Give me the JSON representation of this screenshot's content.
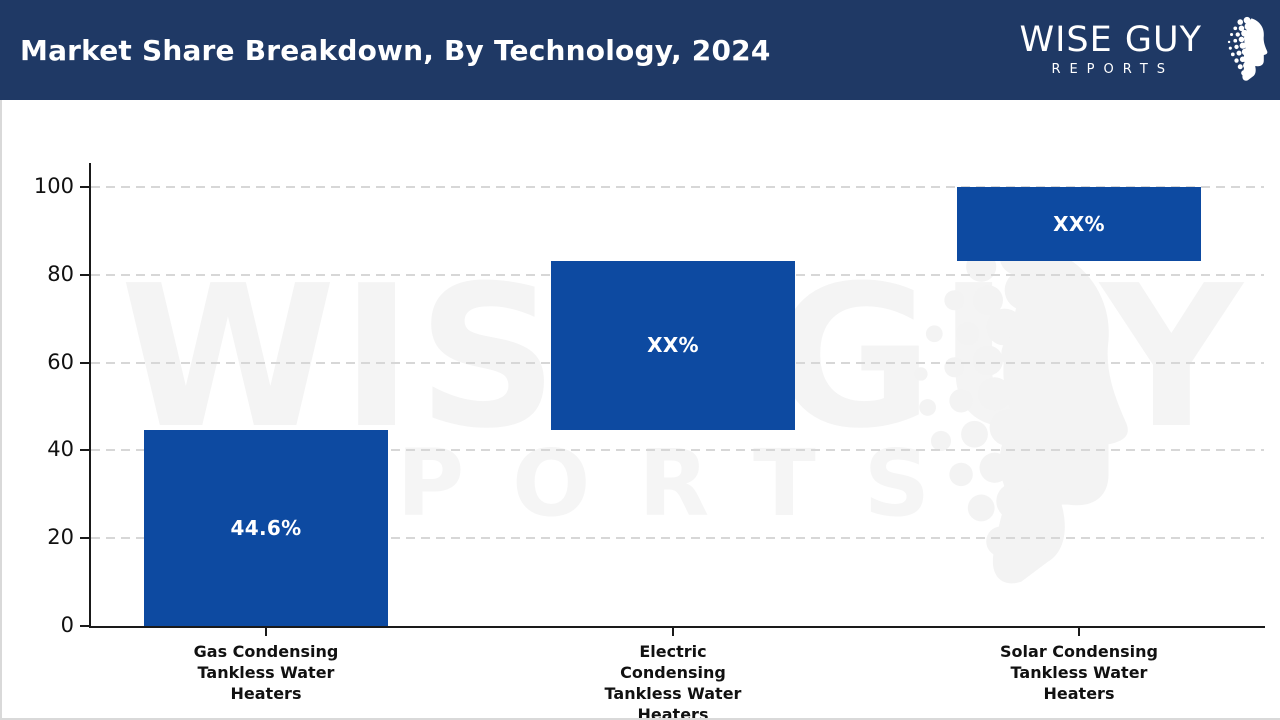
{
  "header": {
    "title": "Market Share Breakdown, By Technology, 2024",
    "bg_color": "#1f3965",
    "logo": {
      "line1": "WISE GUY",
      "line2": "REPORTS"
    }
  },
  "watermark": {
    "line1": "WISE GUY",
    "line2": "REPORTS"
  },
  "chart_data": {
    "type": "bar",
    "subtype": "waterfall",
    "title": "Market Share Breakdown, By Technology, 2024",
    "categories": [
      "Gas Condensing Tankless Water Heaters",
      "Electric Condensing Tankless Water Heaters",
      "Solar Condensing Tankless Water Heaters"
    ],
    "categories_wrapped": [
      [
        "Gas Condensing",
        "Tankless Water",
        "Heaters"
      ],
      [
        "Electric",
        "Condensing",
        "Tankless Water",
        "Heaters"
      ],
      [
        "Solar Condensing",
        "Tankless Water",
        "Heaters"
      ]
    ],
    "segments": [
      {
        "start": 0,
        "end": 44.6,
        "value": 44.6,
        "label": "44.6%"
      },
      {
        "start": 44.6,
        "end": 83.2,
        "value": 38.6,
        "label": "XX%"
      },
      {
        "start": 83.2,
        "end": 100,
        "value": 16.8,
        "label": "XX%"
      }
    ],
    "ylim": [
      0,
      100
    ],
    "yticks": [
      0,
      20,
      40,
      60,
      80,
      100
    ],
    "xlabel": "",
    "ylabel": "",
    "grid": {
      "axis": "y",
      "style": "dashed",
      "color": "#d7d7d7"
    },
    "legend": null,
    "bar_color": "#0d4aa1",
    "bar_label_color": "#ffffff",
    "axis_color": "#1a1a1a",
    "tick_label_color": "#111111"
  }
}
